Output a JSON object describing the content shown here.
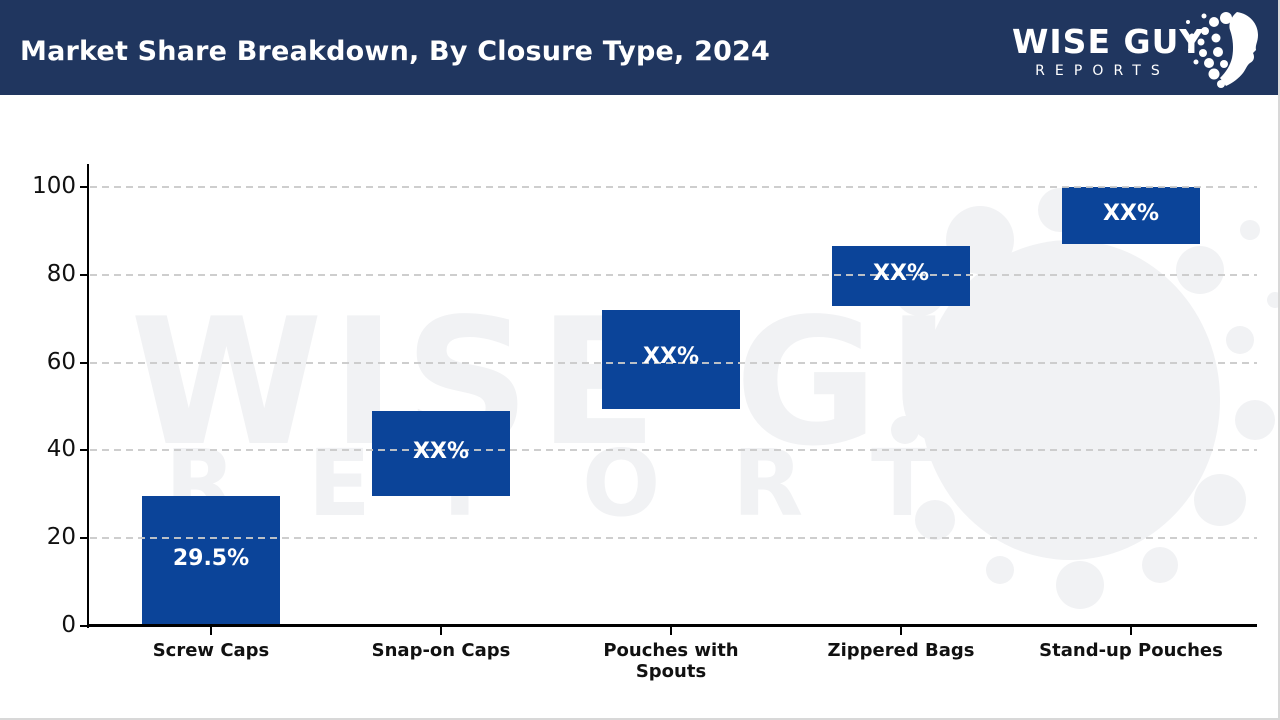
{
  "header": {
    "title": "Market Share Breakdown, By Closure Type, 2024",
    "logo": {
      "line1": "WISE GUY",
      "line2": "REPORTS"
    }
  },
  "watermark": {
    "line1": "WISE GUY",
    "line2": "REPORTS"
  },
  "colors": {
    "header_bg": "#20365f",
    "bar_fill": "#0b4499",
    "bar_label": "#ffffff",
    "gridline": "#cacaca",
    "axis": "#000000",
    "watermark": "#f1f2f4"
  },
  "chart_data": {
    "type": "bar",
    "subtype": "waterfall",
    "title": "Market Share Breakdown, By Closure Type, 2024",
    "xlabel": "",
    "ylabel": "",
    "ylim": [
      0,
      105
    ],
    "yticks": [
      0,
      20,
      40,
      60,
      80,
      100
    ],
    "grid": "dashed horizontal, drawn over bars",
    "legend": "none",
    "categories": [
      "Screw Caps",
      "Snap-on Caps",
      "Pouches with Spouts",
      "Zippered Bags",
      "Stand-up Pouches"
    ],
    "segments": [
      {
        "category": "Screw Caps",
        "start": 0,
        "end": 29.5,
        "label": "29.5%"
      },
      {
        "category": "Snap-on Caps",
        "start": 29.5,
        "end": 49,
        "label": "XX%"
      },
      {
        "category": "Pouches with Spouts",
        "start": 49.5,
        "end": 72,
        "label": "XX%"
      },
      {
        "category": "Zippered Bags",
        "start": 73,
        "end": 86.5,
        "label": "XX%"
      },
      {
        "category": "Stand-up Pouches",
        "start": 87,
        "end": 100,
        "label": "XX%"
      }
    ]
  }
}
